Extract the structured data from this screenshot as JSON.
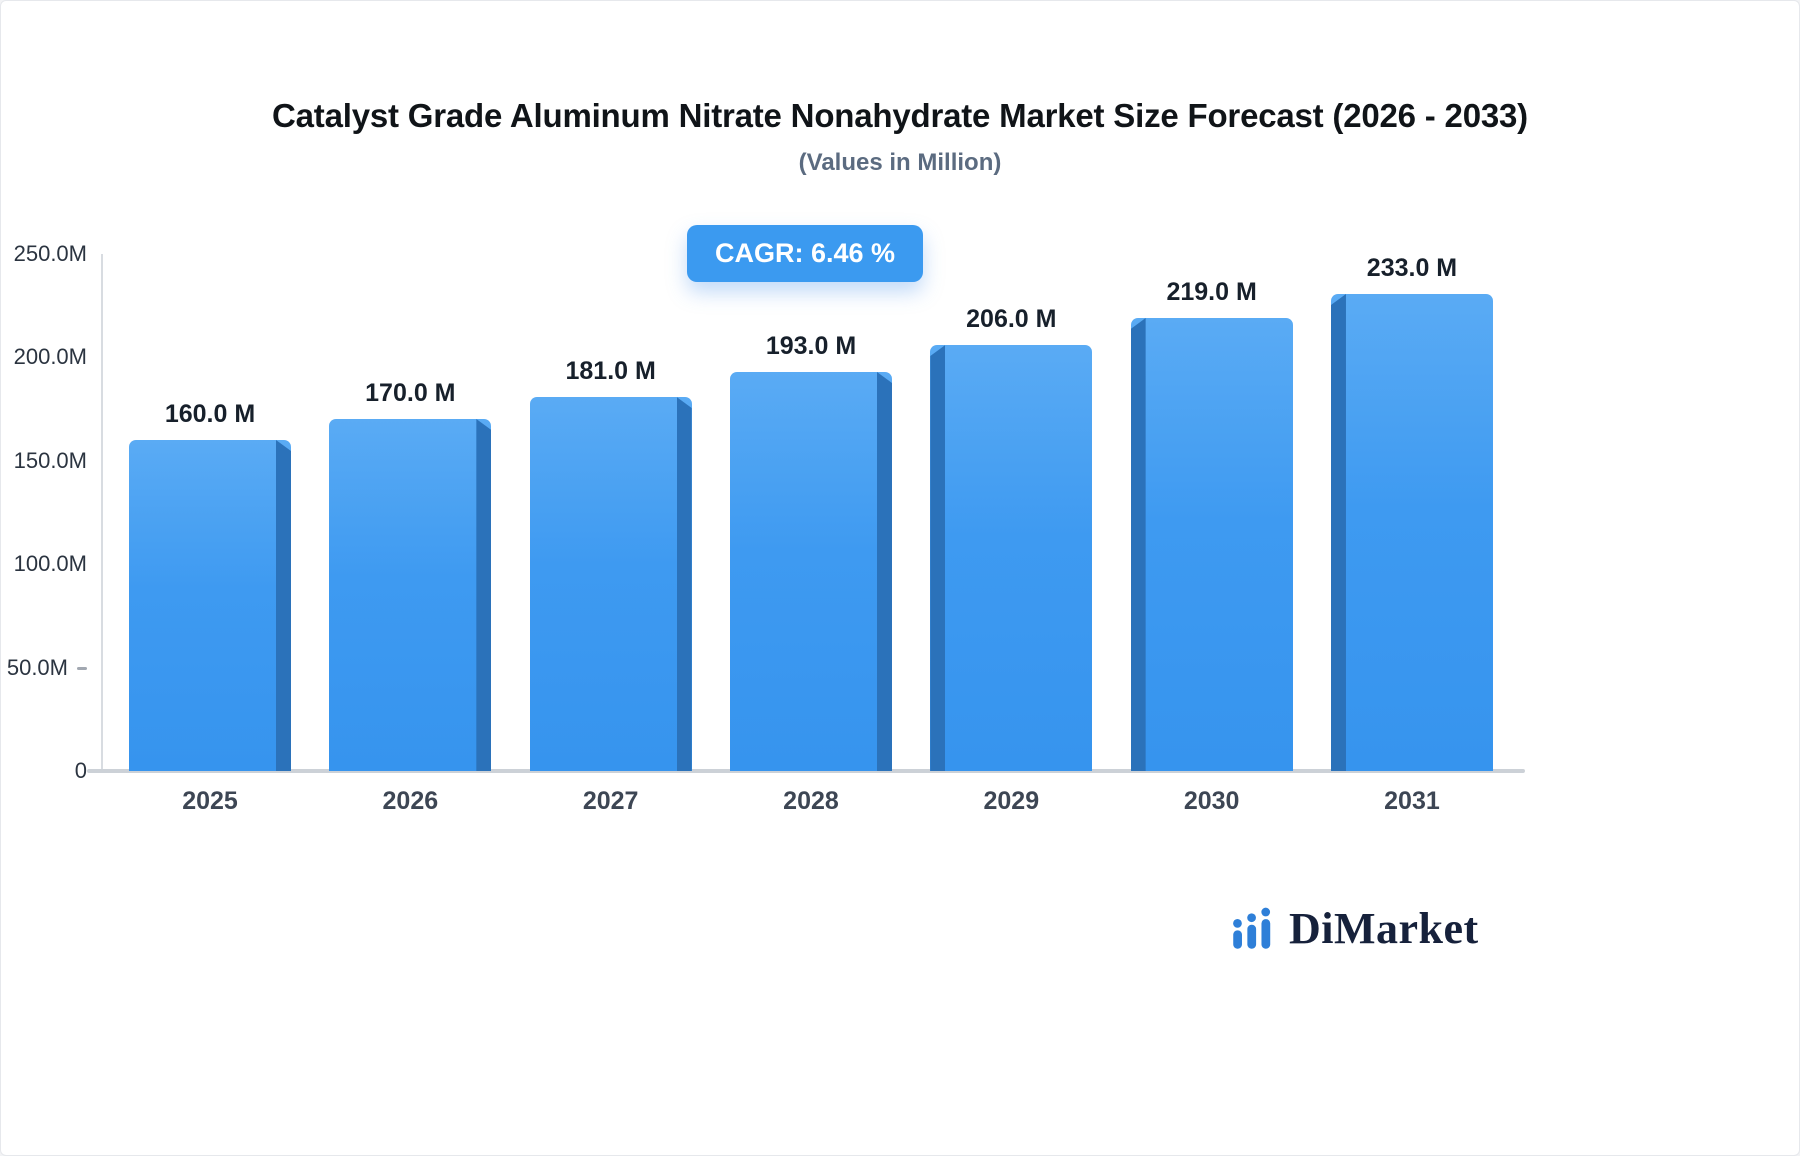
{
  "header": {
    "title": "Catalyst Grade Aluminum Nitrate Nonahydrate Market Size Forecast (2026 - 2033)",
    "subtitle": "(Values in Million)"
  },
  "cagr_badge": {
    "label": "CAGR: 6.46 %"
  },
  "brand": {
    "name": "DiMarket",
    "icon": "bar-chart-logo-icon",
    "icon_color": "#2e7fd8",
    "text_color": "#16213b"
  },
  "chart_data": {
    "type": "bar",
    "title": "Catalyst Grade Aluminum Nitrate Nonahydrate Market Size Forecast (2026 - 2033)",
    "subtitle": "(Values in Million)",
    "categories": [
      "2025",
      "2026",
      "2027",
      "2028",
      "2029",
      "2030",
      "2031"
    ],
    "values": [
      160.0,
      170.0,
      181.0,
      193.0,
      206.0,
      219.0,
      233.0
    ],
    "value_labels": [
      "160.0 M",
      "170.0 M",
      "181.0 M",
      "193.0 M",
      "206.0 M",
      "219.0 M",
      "233.0 M"
    ],
    "y_ticks": [
      {
        "label": "250.0M",
        "value": 250
      },
      {
        "label": "200.0M",
        "value": 200
      },
      {
        "label": "150.0M",
        "value": 150
      },
      {
        "label": "100.0M",
        "value": 100
      },
      {
        "label": "50.0M",
        "value": 50
      },
      {
        "label": "0",
        "value": 0
      }
    ],
    "ylim": [
      0,
      250
    ],
    "grid": false,
    "legend": false,
    "cagr": "6.46 %",
    "bar_color": "#3e9af1",
    "bar_side_color": "#2b72ba",
    "badge_color": "#3b9af0"
  }
}
